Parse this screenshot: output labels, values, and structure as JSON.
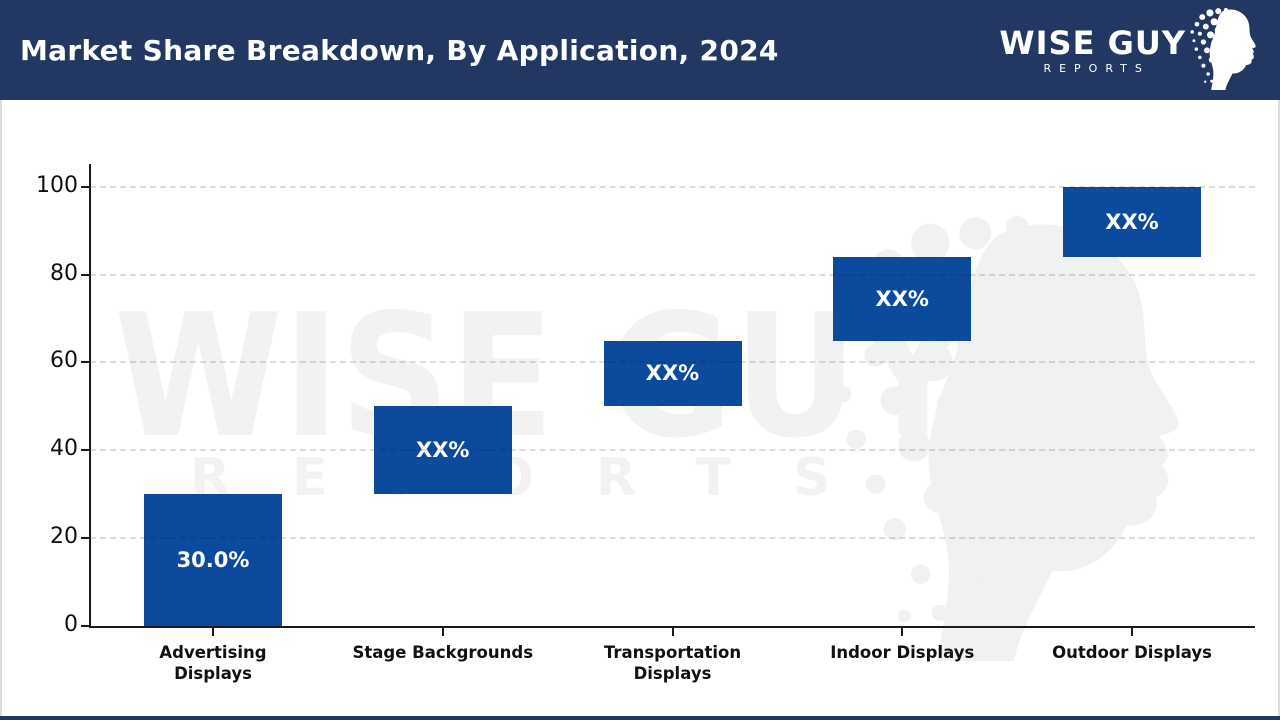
{
  "header": {
    "title": "Market Share Breakdown, By Application, 2024",
    "logo": {
      "name_top": "WISE GUY",
      "name_bottom": "REPORTS",
      "icon": "dotted-head-profile"
    }
  },
  "watermark": {
    "line1": "WISE GUY",
    "line2": "REPORTS",
    "icon": "dotted-head-profile"
  },
  "chart_data": {
    "type": "bar",
    "subtype": "waterfall",
    "title": "Market Share Breakdown, By Application, 2024",
    "categories": [
      "Advertising Displays",
      "Stage Backgrounds",
      "Transportation Displays",
      "Indoor Displays",
      "Outdoor Displays"
    ],
    "category_lines": [
      [
        "Advertising",
        "Displays"
      ],
      [
        "Stage Backgrounds"
      ],
      [
        "Transportation",
        "Displays"
      ],
      [
        "Indoor Displays"
      ],
      [
        "Outdoor Displays"
      ]
    ],
    "segments": [
      {
        "category": "Advertising Displays",
        "start": 0,
        "end": 30,
        "size": 30,
        "label": "30.0%"
      },
      {
        "category": "Stage Backgrounds",
        "start": 30,
        "end": 50,
        "size": 20,
        "label": "XX%"
      },
      {
        "category": "Transportation Displays",
        "start": 50,
        "end": 65,
        "size": 15,
        "label": "XX%"
      },
      {
        "category": "Indoor Displays",
        "start": 65,
        "end": 84,
        "size": 19,
        "label": "XX%"
      },
      {
        "category": "Outdoor Displays",
        "start": 84,
        "end": 100,
        "size": 16,
        "label": "XX%"
      }
    ],
    "yticks": [
      0,
      20,
      40,
      60,
      80,
      100
    ],
    "ylim": [
      0,
      100
    ],
    "xlabel": "",
    "ylabel": "",
    "grid": "horizontal-dashed",
    "legend": false
  },
  "colors": {
    "header_bg": "#223862",
    "bar": "#0c4a9e",
    "bar_label": "#ffffff",
    "axis": "#1a1a1a",
    "watermark": "#f2f2f4",
    "footer_bg": "#223862"
  }
}
